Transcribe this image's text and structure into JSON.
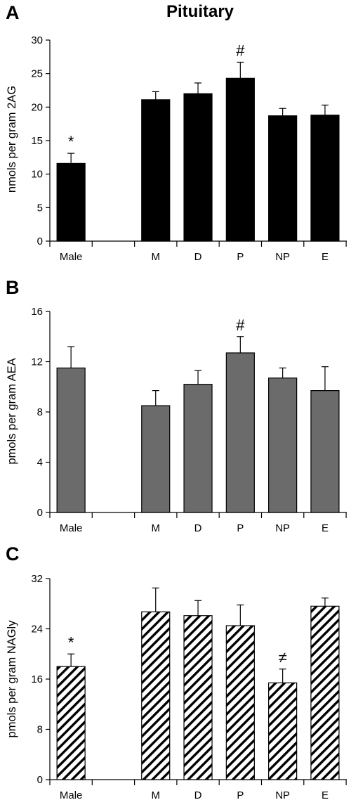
{
  "figure": {
    "title": "Pituitary"
  },
  "chart_data": [
    {
      "type": "bar",
      "panel": "A",
      "ylabel": "nmols per gram 2AG",
      "ylim": [
        0,
        30
      ],
      "yticks": [
        "0",
        "5",
        "10",
        "15",
        "20",
        "25",
        "30"
      ],
      "categories": [
        "Male",
        "",
        "M",
        "D",
        "P",
        "NP",
        "E"
      ],
      "values": [
        11.6,
        null,
        21.1,
        22.0,
        24.3,
        18.7,
        18.8
      ],
      "errors": [
        1.5,
        null,
        1.2,
        1.6,
        2.4,
        1.1,
        1.5
      ],
      "markers": [
        "*",
        "",
        "",
        "",
        "#",
        "",
        ""
      ],
      "fill": "solid",
      "color": "#000000"
    },
    {
      "type": "bar",
      "panel": "B",
      "ylabel": "pmols per gram AEA",
      "ylim": [
        0,
        16
      ],
      "yticks": [
        "0",
        "4",
        "8",
        "12",
        "16"
      ],
      "categories": [
        "Male",
        "",
        "M",
        "D",
        "P",
        "NP",
        "E"
      ],
      "values": [
        11.5,
        null,
        8.5,
        10.2,
        12.7,
        10.7,
        9.7
      ],
      "errors": [
        1.7,
        null,
        1.2,
        1.1,
        1.3,
        0.8,
        1.9
      ],
      "markers": [
        "",
        "",
        "",
        "",
        "#",
        "",
        ""
      ],
      "fill": "solid",
      "color": "#6b6b6b"
    },
    {
      "type": "bar",
      "panel": "C",
      "ylabel": "pmols per gram NAGly",
      "ylim": [
        0,
        32
      ],
      "yticks": [
        "0",
        "8",
        "16",
        "24",
        "32"
      ],
      "categories": [
        "Male",
        "",
        "M",
        "D",
        "P",
        "NP",
        "E"
      ],
      "values": [
        18.0,
        null,
        26.7,
        26.1,
        24.5,
        15.4,
        27.6
      ],
      "errors": [
        2.0,
        null,
        3.8,
        2.4,
        3.3,
        2.2,
        1.3
      ],
      "markers": [
        "*",
        "",
        "",
        "",
        "",
        "≠",
        ""
      ],
      "fill": "diagonal-hatch",
      "color": "#000000"
    }
  ]
}
